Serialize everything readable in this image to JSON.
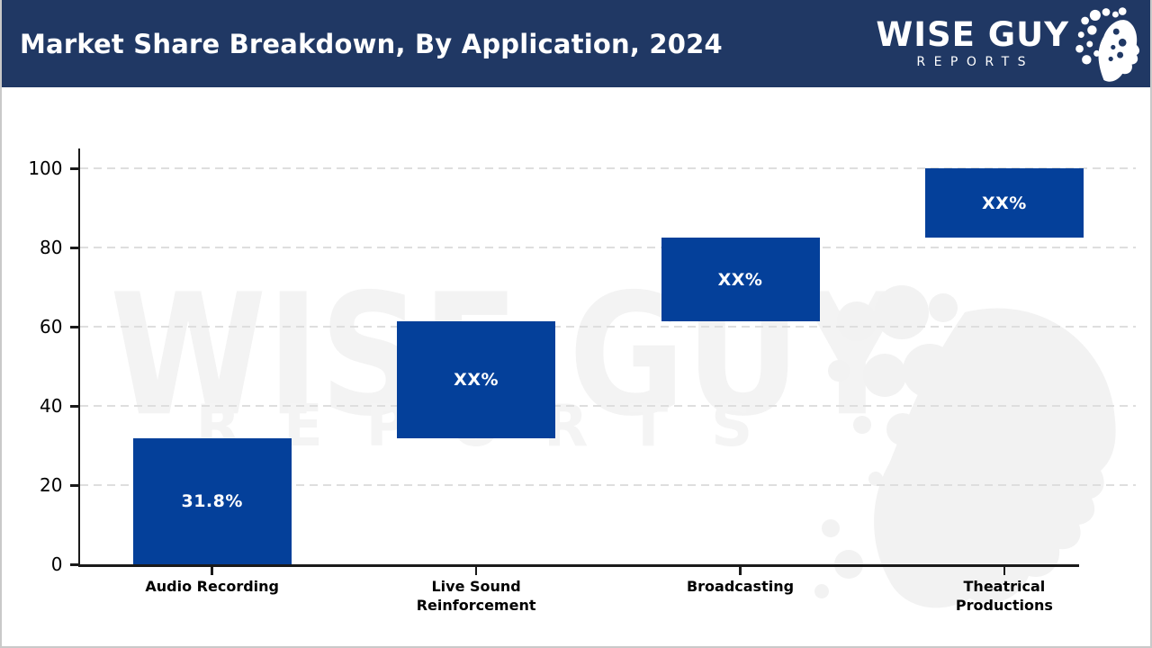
{
  "header": {
    "title": "Market Share Breakdown, By Application, 2024",
    "bg_color": "#203864",
    "logo": {
      "line1": "WISE GUY",
      "line2": "REPORTS"
    }
  },
  "watermark": {
    "line1": "WISE GUY",
    "line2": "REPORTS"
  },
  "chart_data": {
    "type": "bar",
    "subtype": "waterfall",
    "title": "Market Share Breakdown, By Application, 2024",
    "xlabel": "",
    "ylabel": "",
    "categories": [
      "Audio Recording",
      "Live Sound Reinforcement",
      "Broadcasting",
      "Theatrical Productions"
    ],
    "category_lines": [
      [
        "Audio Recording"
      ],
      [
        "Live Sound",
        "Reinforcement"
      ],
      [
        "Broadcasting"
      ],
      [
        "Theatrical",
        "Productions"
      ]
    ],
    "series": [
      {
        "name": "Market Share (%)",
        "segments": [
          {
            "category": "Audio Recording",
            "start": 0,
            "end": 31.8,
            "label": "31.8%"
          },
          {
            "category": "Live Sound Reinforcement",
            "start": 31.8,
            "end": 61.3,
            "label": "XX%"
          },
          {
            "category": "Broadcasting",
            "start": 61.3,
            "end": 82.4,
            "label": "XX%"
          },
          {
            "category": "Theatrical Productions",
            "start": 82.4,
            "end": 100,
            "label": "XX%"
          }
        ]
      }
    ],
    "yticks": [
      0,
      20,
      40,
      60,
      80,
      100
    ],
    "ylim": [
      0,
      105
    ],
    "grid": "horizontal-dashed",
    "legend": "none",
    "bar_color": "#04409a",
    "bar_label_color": "#ffffff",
    "axis_color": "#1a1a1a",
    "grid_color": "#dedede"
  }
}
